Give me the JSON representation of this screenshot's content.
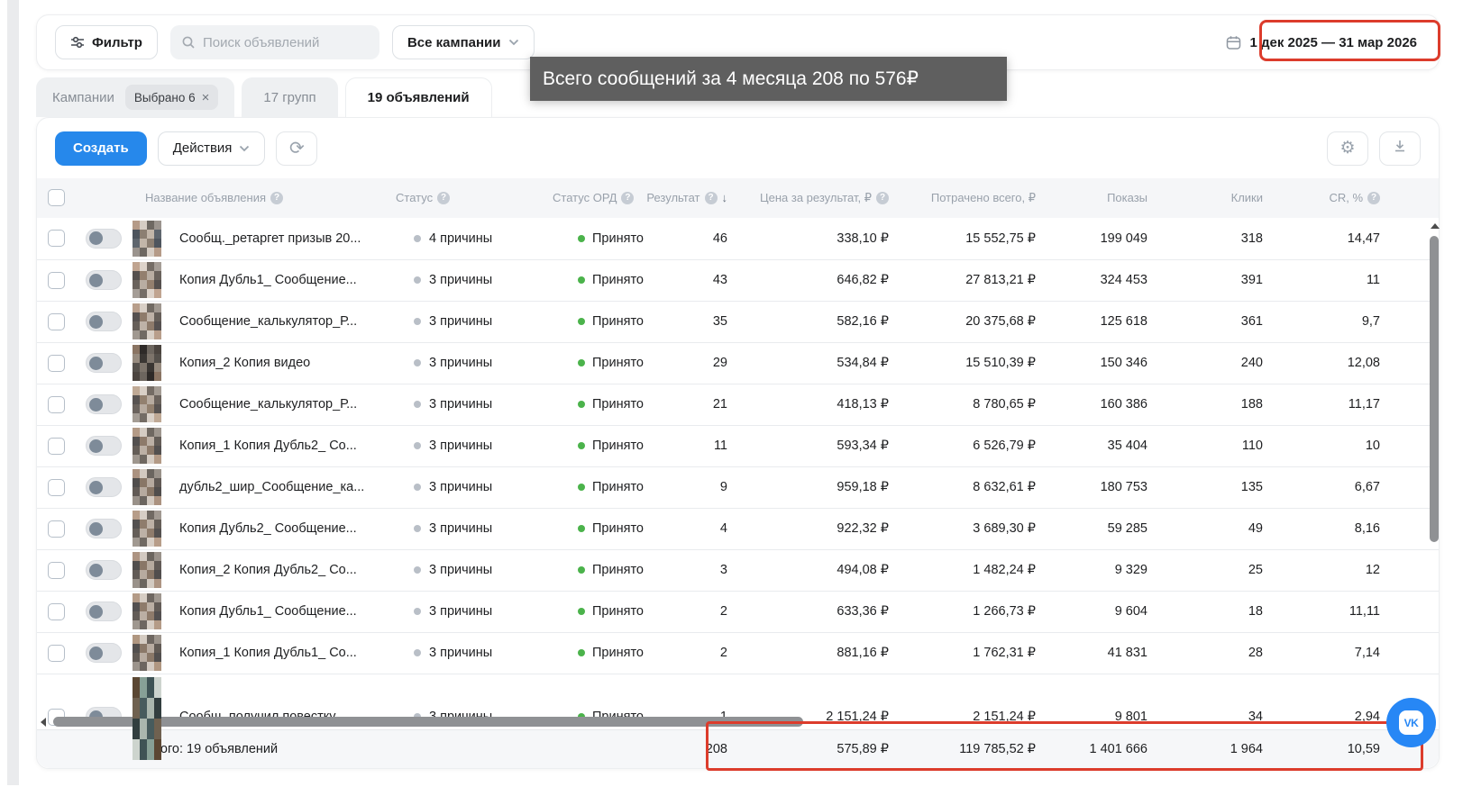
{
  "toolbar": {
    "filter_label": "Фильтр",
    "search_placeholder": "Поиск объявлений",
    "campaigns_dropdown": "Все кампании",
    "date_range": "1 дек 2025 — 31 мар 2026"
  },
  "tooltip": {
    "text": "Всего сообщений за 4 месяца 208 по 576₽"
  },
  "tabs": {
    "campaigns_label": "Кампании",
    "selected_chip": "Выбрано 6",
    "groups_label": "17 групп",
    "ads_label": "19 объявлений"
  },
  "actions": {
    "create_label": "Создать",
    "actions_label": "Действия"
  },
  "vk_logo": "VK",
  "colors": {
    "accent_blue": "#2688eb",
    "annotation_red": "#dc3c2c",
    "status_green": "#4bb34b",
    "vk_blue": "#2787f5",
    "tooltip_gray": "#5a5a5a"
  },
  "table": {
    "columns": [
      "Название объявления",
      "Статус",
      "Статус ОРД",
      "Результат",
      "Цена за результат, ₽",
      "Потрачено всего, ₽",
      "Показы",
      "Клики",
      "CR, %"
    ],
    "rows": [
      {
        "name": "Сообщ._ретаргет призыв 20...",
        "status": "4 причины",
        "ord": "Принято",
        "result": "46",
        "price": "338,10 ₽",
        "spent": "15 552,75 ₽",
        "shows": "199 049",
        "clicks": "318",
        "cr": "14,47",
        "thumb": [
          "#b59b88",
          "#d6cdc4",
          "#6e6862",
          "#9b948e",
          "#4e555e",
          "#8c7f72",
          "#c2b6a9",
          "#5f666e"
        ]
      },
      {
        "name": "Копия Дубль1_ Сообщение...",
        "status": "3 причины",
        "ord": "Принято",
        "result": "43",
        "price": "646,82 ₽",
        "spent": "27 813,21 ₽",
        "shows": "324 453",
        "clicks": "391",
        "cr": "11",
        "thumb": [
          "#c0a490",
          "#ddd3ca",
          "#756d66",
          "#a59d96",
          "#55504e",
          "#937f6e",
          "#b9ada2",
          "#6a625c"
        ]
      },
      {
        "name": "Сообщение_калькулятор_Р...",
        "status": "3 причины",
        "ord": "Принято",
        "result": "35",
        "price": "582,16 ₽",
        "spent": "20 375,68 ₽",
        "shows": "125 618",
        "clicks": "361",
        "cr": "9,7",
        "thumb": [
          "#b89e8b",
          "#d8cfc6",
          "#716a63",
          "#a09890",
          "#565150",
          "#8e7b6b",
          "#beb2a7",
          "#665f59"
        ]
      },
      {
        "name": "Копия_2 Копия видео",
        "status": "3 причины",
        "ord": "Принято",
        "result": "29",
        "price": "534,84 ₽",
        "spent": "15 510,39 ₽",
        "shows": "150 346",
        "clicks": "240",
        "cr": "12,08",
        "thumb": [
          "#8a7463",
          "#2e2a28",
          "#6d665f",
          "#4b443f",
          "#978b7f",
          "#3a3633",
          "#7d746b",
          "#55504b"
        ]
      },
      {
        "name": "Сообщение_калькулятор_Р...",
        "status": "3 причины",
        "ord": "Принято",
        "result": "21",
        "price": "418,13 ₽",
        "spent": "8 780,65 ₽",
        "shows": "160 386",
        "clicks": "188",
        "cr": "11,17",
        "thumb": [
          "#bfa995",
          "#d9d0c7",
          "#746c65",
          "#a49c94",
          "#585351",
          "#92806f",
          "#b7aba0",
          "#6b635d"
        ]
      },
      {
        "name": "Копия_1 Копия Дубль2_ Со...",
        "status": "3 причины",
        "ord": "Принято",
        "result": "11",
        "price": "593,34 ₽",
        "spent": "6 526,79 ₽",
        "shows": "35 404",
        "clicks": "110",
        "cr": "10",
        "thumb": [
          "#b39a86",
          "#d5ccc3",
          "#6f6861",
          "#9e968e",
          "#53504f",
          "#8d7a6a",
          "#bcb0a5",
          "#645d57"
        ]
      },
      {
        "name": "дубль2_шир_Сообщение_ка...",
        "status": "3 причины",
        "ord": "Принято",
        "result": "9",
        "price": "959,18 ₽",
        "spent": "8 632,61 ₽",
        "shows": "180 753",
        "clicks": "135",
        "cr": "6,67",
        "thumb": [
          "#ab9280",
          "#d2c9c0",
          "#6b655f",
          "#999189",
          "#504d4c",
          "#887666",
          "#b6aa9f",
          "#615a55"
        ]
      },
      {
        "name": "Копия Дубль2_ Сообщение...",
        "status": "3 причины",
        "ord": "Принято",
        "result": "4",
        "price": "922,32 ₽",
        "spent": "3 689,30 ₽",
        "shows": "59 285",
        "clicks": "49",
        "cr": "8,16",
        "thumb": [
          "#b79d89",
          "#d7cec5",
          "#706962",
          "#a19991",
          "#545150",
          "#8f7c6c",
          "#bdb1a6",
          "#655e58"
        ]
      },
      {
        "name": "Копия_2 Копия Дубль2_ Со...",
        "status": "3 причины",
        "ord": "Принято",
        "result": "3",
        "price": "494,08 ₽",
        "spent": "1 482,24 ₽",
        "shows": "9 329",
        "clicks": "25",
        "cr": "12",
        "thumb": [
          "#ad9482",
          "#d3cac1",
          "#6c665f",
          "#9a928a",
          "#514e4d",
          "#897767",
          "#b7ab9f",
          "#625b56"
        ]
      },
      {
        "name": "Копия Дубль1_ Сообщение...",
        "status": "3 причины",
        "ord": "Принято",
        "result": "2",
        "price": "633,36 ₽",
        "spent": "1 266,73 ₽",
        "shows": "9 604",
        "clicks": "18",
        "cr": "11,11",
        "thumb": [
          "#b49b87",
          "#d6cdc4",
          "#6e6761",
          "#9f978f",
          "#535050",
          "#8e7b6b",
          "#bbafa4",
          "#635c57"
        ]
      },
      {
        "name": "Копия_1 Копия Дубль1_ Со...",
        "status": "3 причины",
        "ord": "Принято",
        "result": "2",
        "price": "881,16 ₽",
        "spent": "1 762,31 ₽",
        "shows": "41 831",
        "clicks": "28",
        "cr": "7,14",
        "thumb": [
          "#b09781",
          "#d4cbc2",
          "#6d6660",
          "#9c948c",
          "#524f4e",
          "#8a7868",
          "#b8aca1",
          "#615a54"
        ]
      },
      {
        "name": "Сообщ_получил повестку._...",
        "status": "3 причины",
        "ord": "Принято",
        "result": "1",
        "price": "2 151,24 ₽",
        "spent": "2 151,24 ₽",
        "shows": "9 801",
        "clicks": "34",
        "cr": "2,94",
        "thumb": [
          "#5b4733",
          "#87a096",
          "#3f5355",
          "#cdd4ce",
          "#6f6150",
          "#475b5d",
          "#aab6ae",
          "#323e3f"
        ]
      }
    ],
    "footer": {
      "total_label": "Итого: 19 объявлений",
      "result": "208",
      "price": "575,89 ₽",
      "spent": "119 785,52 ₽",
      "shows": "1 401 666",
      "clicks": "1 964",
      "cr": "10,59"
    }
  }
}
